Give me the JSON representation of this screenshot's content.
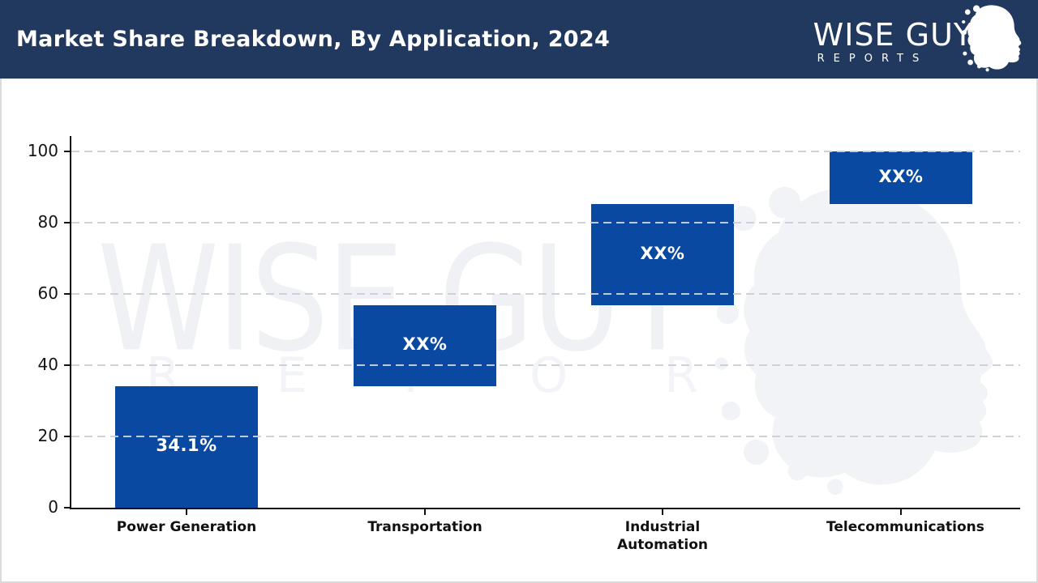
{
  "header": {
    "title": "Market Share Breakdown, By Application, 2024",
    "bg_color": "#21395F",
    "logo": {
      "line1": "WISE GUY",
      "line2": "REPORTS"
    }
  },
  "watermark": {
    "line1": "WISE GUY",
    "line2": "R E P O R T S"
  },
  "chart_data": {
    "type": "bar",
    "subtype": "waterfall",
    "title": "Market Share Breakdown, By Application, 2024",
    "categories": [
      "Power Generation",
      "Transportation",
      "Industrial Automation",
      "Telecommunications"
    ],
    "series": [
      {
        "name": "Market Share",
        "segments": [
          {
            "category": "Power Generation",
            "start": 0,
            "end": 34.1,
            "label": "34.1%"
          },
          {
            "category": "Transportation",
            "start": 34.1,
            "end": 56.8,
            "label": "XX%"
          },
          {
            "category": "Industrial Automation",
            "start": 56.8,
            "end": 85.2,
            "label": "XX%"
          },
          {
            "category": "Telecommunications",
            "start": 85.2,
            "end": 100,
            "label": "XX%"
          }
        ]
      }
    ],
    "xlabel": "",
    "ylabel": "",
    "ylim": [
      0,
      100
    ],
    "yticks": [
      0,
      20,
      40,
      60,
      80,
      100
    ],
    "grid": "horizontal-dashed",
    "legend": "none",
    "colors": {
      "bar": "#0A49A2",
      "bar_label": "#FFFFFF",
      "grid": "#D9D9D9",
      "axis": "#111111",
      "header_bg": "#21395F",
      "watermark": "#F1F2F5"
    }
  }
}
